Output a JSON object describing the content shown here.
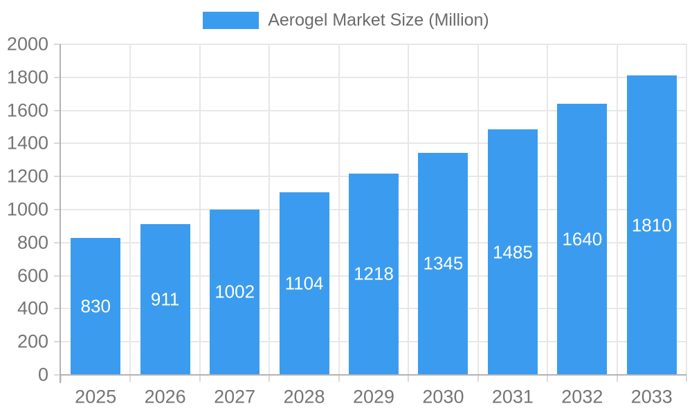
{
  "legend": {
    "label": "Aerogel Market Size (Million)",
    "swatch_color": "#3b9cef"
  },
  "chart_data": {
    "type": "bar",
    "title": "Aerogel Market Size (Million)",
    "categories": [
      "2025",
      "2026",
      "2027",
      "2028",
      "2029",
      "2030",
      "2031",
      "2032",
      "2033"
    ],
    "values": [
      830,
      911,
      1002,
      1104,
      1218,
      1345,
      1485,
      1640,
      1810
    ],
    "xlabel": "",
    "ylabel": "",
    "ylim": [
      0,
      2000
    ],
    "ytick_step": 200,
    "grid": true,
    "legend_position": "top-center",
    "bar_color": "#3b9cef",
    "value_label_color": "#ffffff",
    "axis_text_color": "#757575",
    "gridline_color": "#e7e7e7",
    "axis_line_color": "#b2b2b2"
  }
}
